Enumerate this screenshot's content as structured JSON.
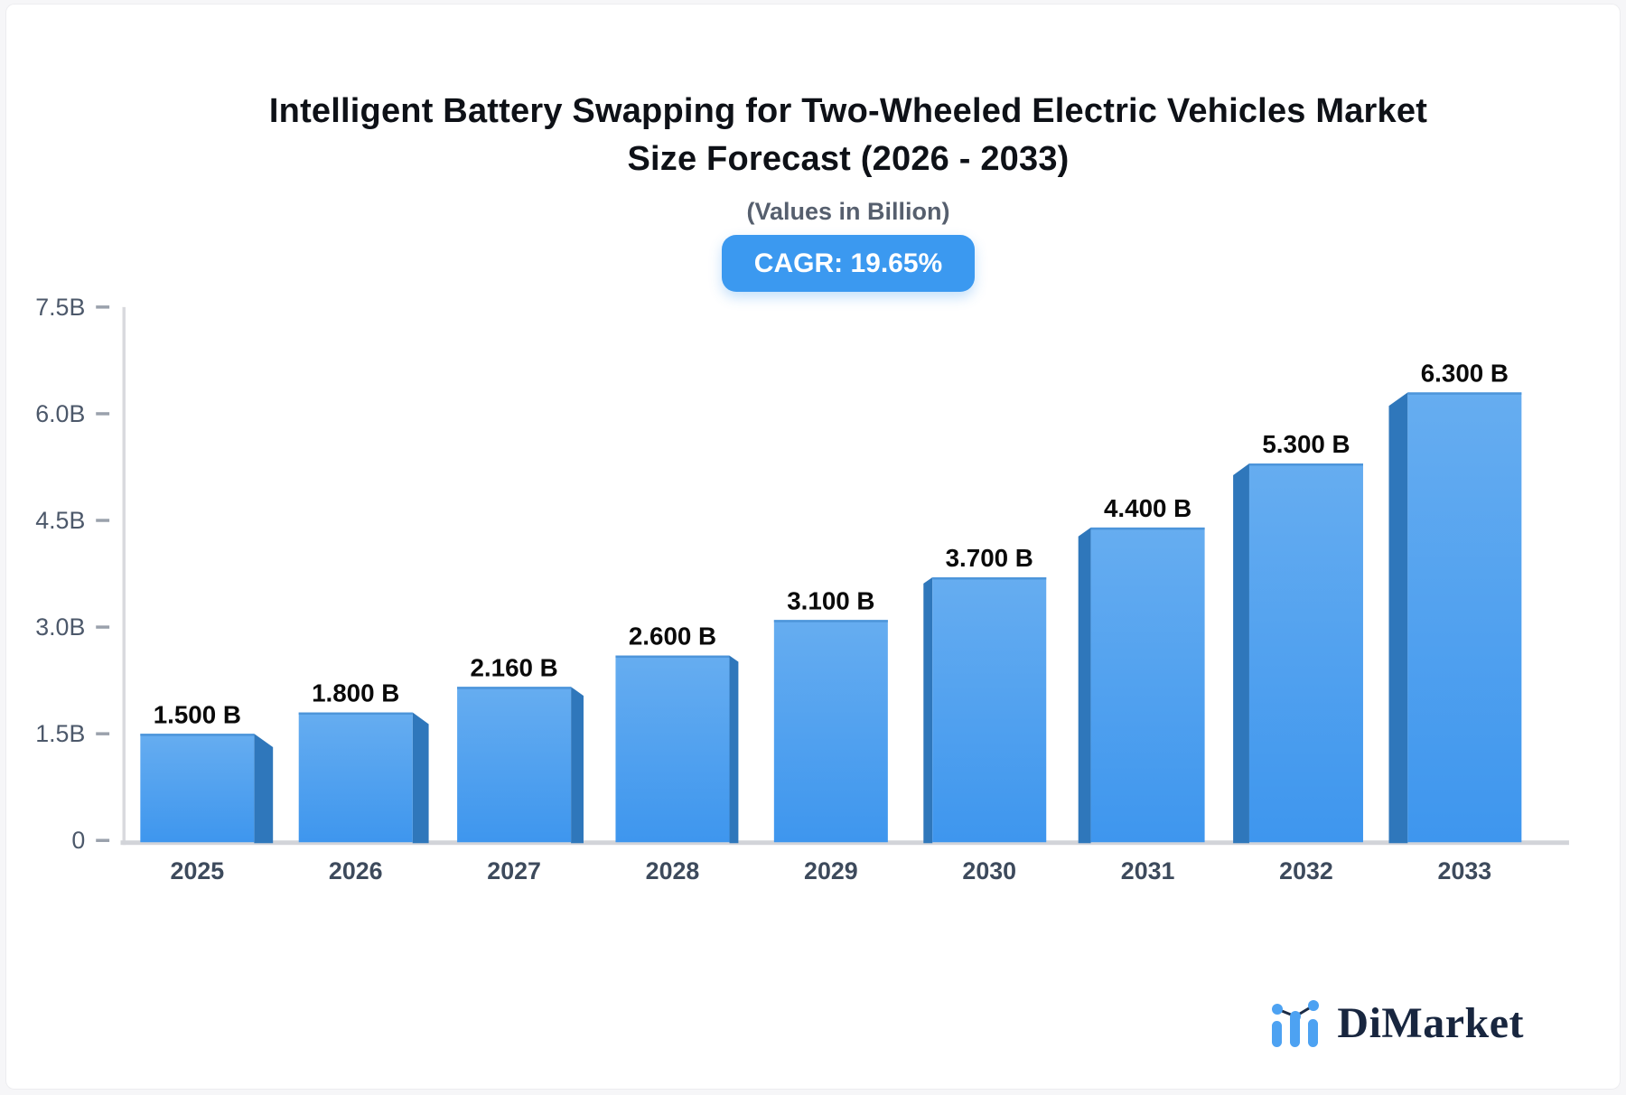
{
  "header": {
    "title": "Intelligent Battery Swapping for Two-Wheeled Electric Vehicles Market Size Forecast (2026 - 2033)",
    "subtitle": "(Values in Billion)",
    "cagr_label": "CAGR: 19.65%"
  },
  "chart_data": {
    "type": "bar",
    "title": "Intelligent Battery Swapping for Two-Wheeled Electric Vehicles Market Size Forecast (2026 - 2033)",
    "subtitle": "(Values in Billion)",
    "cagr_percent": 19.65,
    "categories": [
      "2025",
      "2026",
      "2027",
      "2028",
      "2029",
      "2030",
      "2031",
      "2032",
      "2033"
    ],
    "values": [
      1.5,
      1.8,
      2.16,
      2.6,
      3.1,
      3.7,
      4.4,
      5.3,
      6.3
    ],
    "value_labels": [
      "1.500 B",
      "1.800 B",
      "2.160 B",
      "2.600 B",
      "3.100 B",
      "3.700 B",
      "4.400 B",
      "5.300 B",
      "6.300 B"
    ],
    "xlabel": "",
    "ylabel": "",
    "ylim": [
      0,
      7.5
    ],
    "ytick_labels": [
      "7.5B",
      "6.0B",
      "4.5B",
      "3.0B",
      "1.5B",
      "0"
    ],
    "ytick_values": [
      7.5,
      6.0,
      4.5,
      3.0,
      1.5,
      0
    ],
    "grid": false,
    "legend": "none",
    "bar_style_3d": true,
    "colors": {
      "bar_face_top": "#66adf0",
      "bar_face_bottom": "#3e96ee",
      "bar_side": "#2f77bb",
      "bar_top_edge": "#4d95da",
      "axis_line": "#d9dade",
      "baseline": "#d2d4d9",
      "tick_dash": "#9aa1ac",
      "tick_label": "#4c586a",
      "year_label": "#3d4a5c",
      "value_label": "#0a0a0a",
      "badge_bg": "#3b99f0"
    }
  },
  "branding": {
    "logo_text": "DiMarket",
    "logo_icon": "bar-chart-trend-icon",
    "logo_text_color": "#18263f",
    "logo_bar_color": "#4da2f2",
    "logo_line_color": "#1c2b45"
  }
}
